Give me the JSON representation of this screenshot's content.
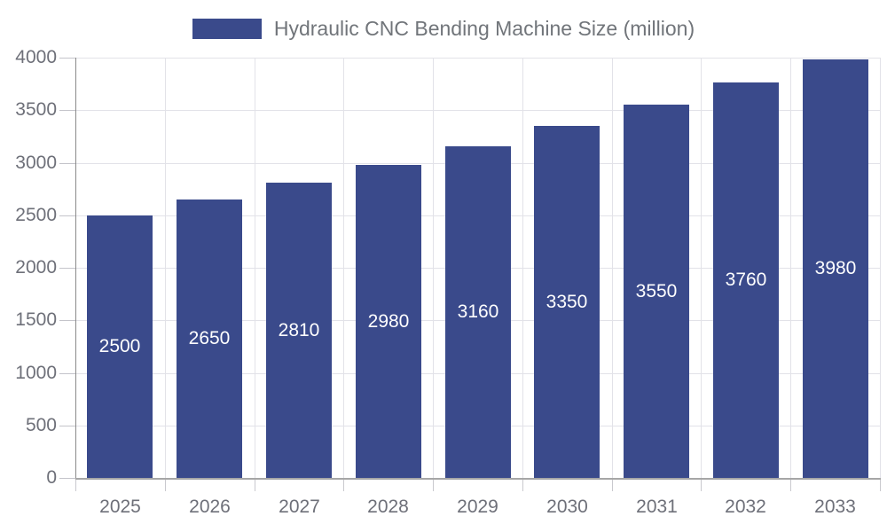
{
  "legend": {
    "label": "Hydraulic CNC Bending Machine Size (million)"
  },
  "chart_data": {
    "type": "bar",
    "title": "Hydraulic CNC Bending Machine Size (million)",
    "categories": [
      "2025",
      "2026",
      "2027",
      "2028",
      "2029",
      "2030",
      "2031",
      "2032",
      "2033"
    ],
    "series": [
      {
        "name": "Hydraulic CNC Bending Machine Size (million)",
        "values": [
          2500,
          2650,
          2810,
          2980,
          3160,
          3350,
          3550,
          3760,
          3980
        ]
      }
    ],
    "xlabel": "",
    "ylabel": "",
    "ylim": [
      0,
      4000
    ],
    "yticks": [
      0,
      500,
      1000,
      1500,
      2000,
      2500,
      3000,
      3500,
      4000
    ],
    "grid": true,
    "legend_position": "top-center",
    "bar_label_position": "inside-center",
    "colors": {
      "bar": "#3A4A8B",
      "bar_label": "#FFFFFF",
      "axis_label": "#6E7079",
      "legend_label": "#71757A",
      "grid": "#E2E2E8",
      "y_axis_line": "#8A8A8A",
      "x_axis_line": "#A6A6A6"
    }
  }
}
